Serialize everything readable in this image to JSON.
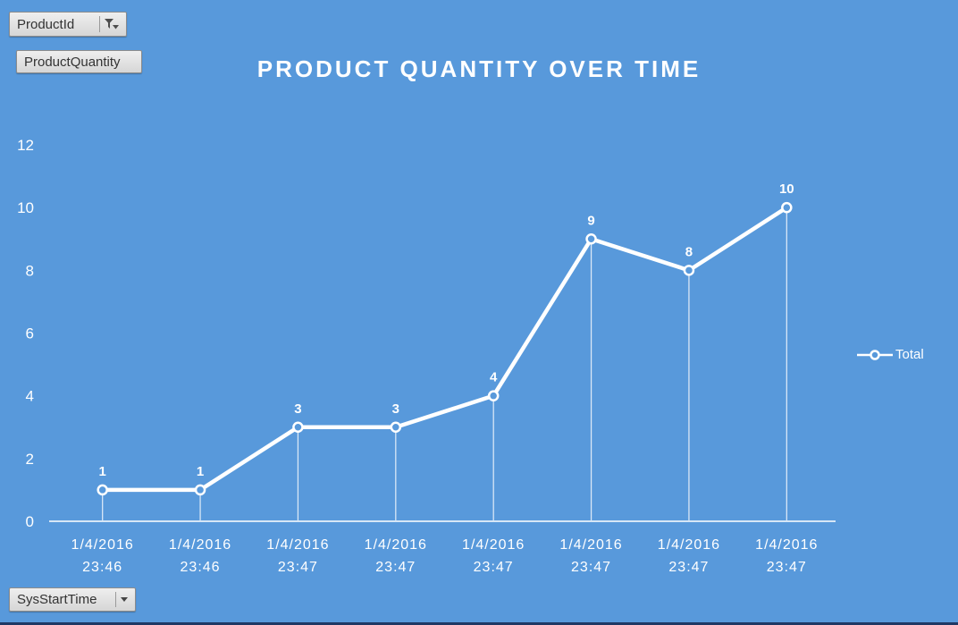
{
  "filters": {
    "product_id": {
      "label": "ProductId",
      "icon": "filter-icon"
    },
    "product_quantity": {
      "label": "ProductQuantity"
    },
    "sys_start_time": {
      "label": "SysStartTime",
      "icon": "chevron-down-icon"
    }
  },
  "chart_data": {
    "type": "line",
    "title": "PRODUCT QUANTITY OVER TIME",
    "categories": [
      [
        "1/4/2016",
        "23:46"
      ],
      [
        "1/4/2016",
        "23:46"
      ],
      [
        "1/4/2016",
        "23:47"
      ],
      [
        "1/4/2016",
        "23:47"
      ],
      [
        "1/4/2016",
        "23:47"
      ],
      [
        "1/4/2016",
        "23:47"
      ],
      [
        "1/4/2016",
        "23:47"
      ],
      [
        "1/4/2016",
        "23:47"
      ]
    ],
    "series": [
      {
        "name": "Total",
        "values": [
          1,
          1,
          3,
          3,
          4,
          9,
          8,
          10
        ]
      }
    ],
    "data_labels": [
      1,
      1,
      3,
      3,
      4,
      9,
      8,
      10
    ],
    "xlabel": "",
    "ylabel": "",
    "ylim": [
      0,
      12
    ],
    "yticks": [
      0,
      2,
      4,
      6,
      8,
      10,
      12
    ],
    "grid": false,
    "legend_position": "right",
    "colors": {
      "background": "#5899DB",
      "line": "#FFFFFF",
      "text": "#FFFFFF",
      "bottom_border": "#1F3864"
    }
  }
}
